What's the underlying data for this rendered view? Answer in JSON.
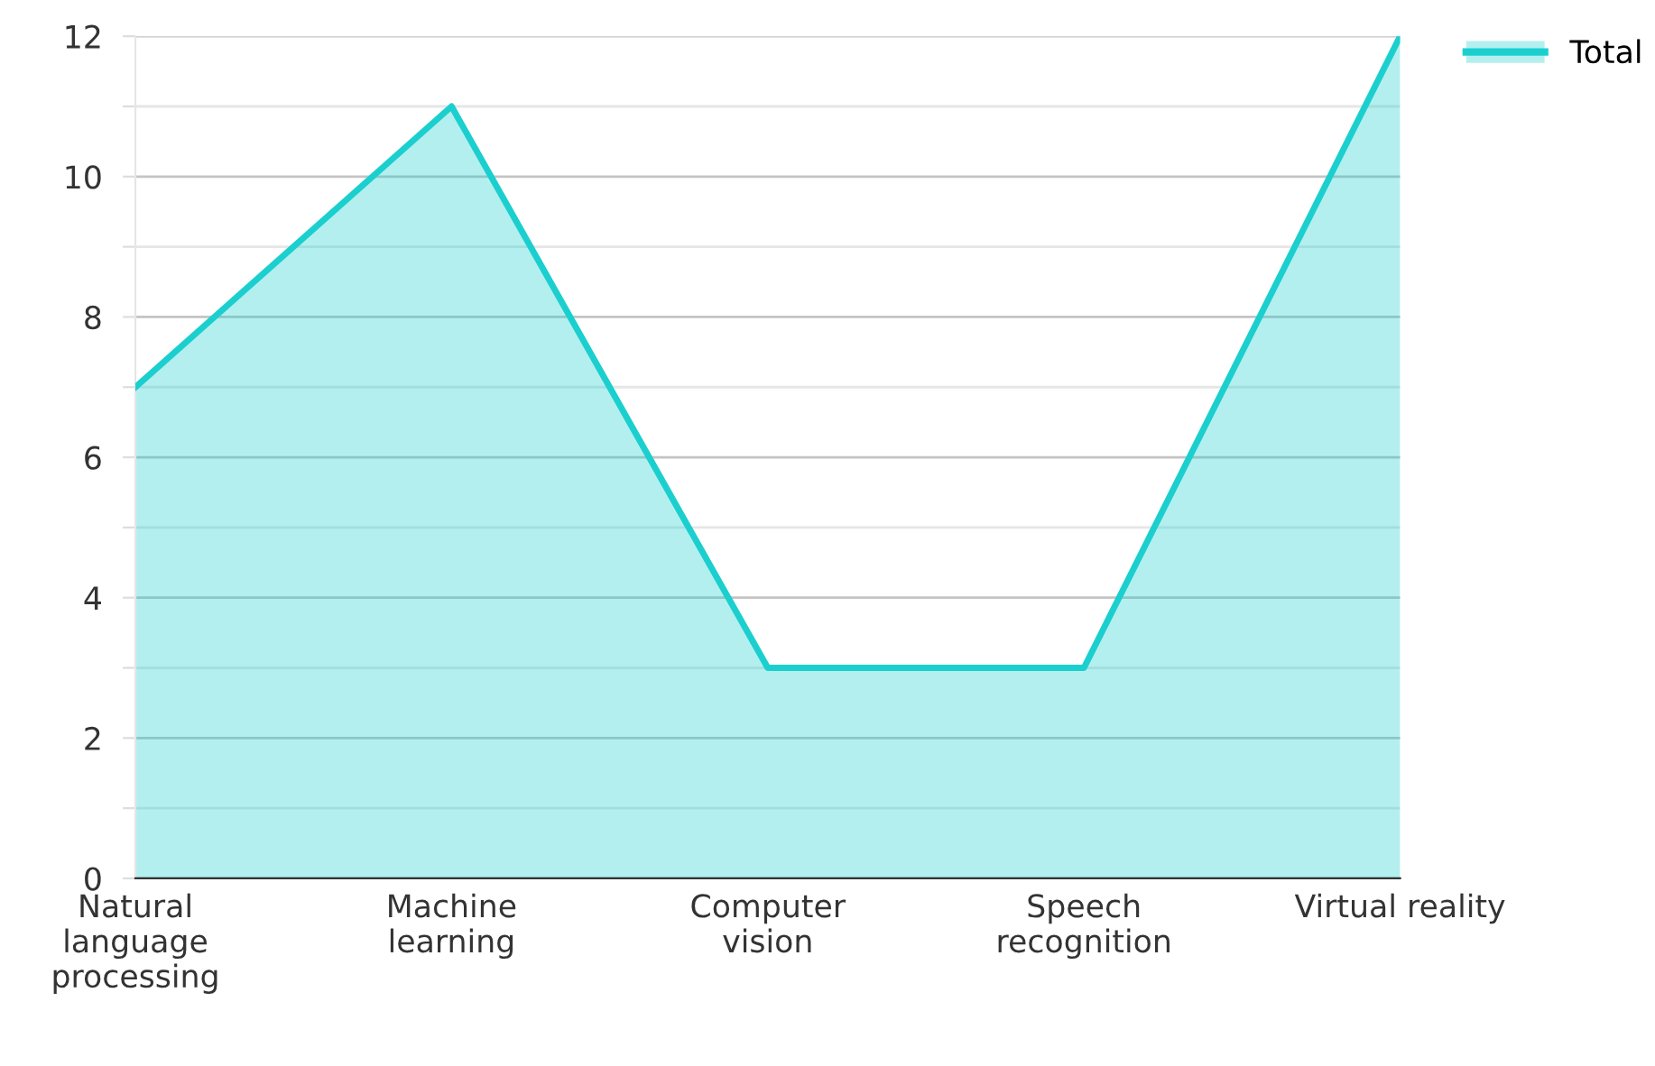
{
  "chart_data": {
    "type": "area",
    "categories": [
      "Natural\nlanguage\nprocessing",
      "Machine\nlearning",
      "Computer\nvision",
      "Speech\nrecognition",
      "Virtual reality"
    ],
    "series": [
      {
        "name": "Total",
        "color": "#1ccfcf",
        "values": [
          7,
          11,
          3,
          3,
          12
        ]
      }
    ],
    "ylim": [
      0,
      12
    ],
    "yticks": [
      0,
      {
        "value": 1,
        "label": null
      },
      2,
      {
        "value": 3,
        "label": null
      },
      4,
      {
        "value": 5,
        "label": null
      },
      6,
      {
        "value": 7,
        "label": null
      },
      8,
      {
        "value": 9,
        "label": null
      },
      10,
      {
        "value": 11,
        "label": null
      },
      12
    ],
    "grid": "y",
    "legend": "top right",
    "marker": "none",
    "line_style": "solid"
  }
}
